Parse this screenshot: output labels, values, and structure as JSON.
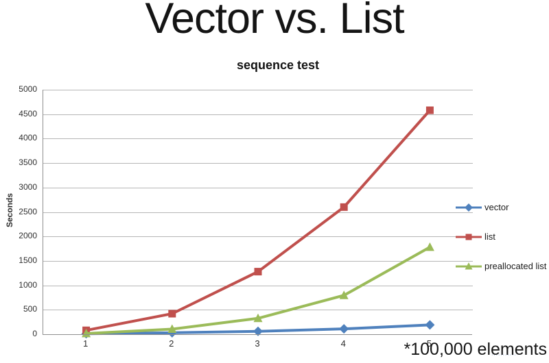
{
  "page": {
    "title": "Vector vs. List",
    "footnote": "*100,000 elements",
    "watermark": "···········"
  },
  "chart_data": {
    "type": "line",
    "title": "sequence test",
    "xlabel": "",
    "ylabel": "Seconds",
    "categories": [
      "1",
      "2",
      "3",
      "4",
      "5"
    ],
    "ylim": [
      0,
      5000
    ],
    "yticks": [
      0,
      500,
      1000,
      1500,
      2000,
      2500,
      3000,
      3500,
      4000,
      4500,
      5000
    ],
    "grid": true,
    "legend_position": "right",
    "series": [
      {
        "name": "vector",
        "color": "#4F81BD",
        "marker": "diamond",
        "values": [
          10,
          30,
          60,
          110,
          190
        ]
      },
      {
        "name": "list",
        "color": "#C0504D",
        "marker": "square",
        "values": [
          80,
          420,
          1280,
          2600,
          4580
        ]
      },
      {
        "name": "preallocated list",
        "color": "#9BBB59",
        "marker": "triangle",
        "values": [
          15,
          105,
          325,
          795,
          1780
        ]
      }
    ]
  }
}
